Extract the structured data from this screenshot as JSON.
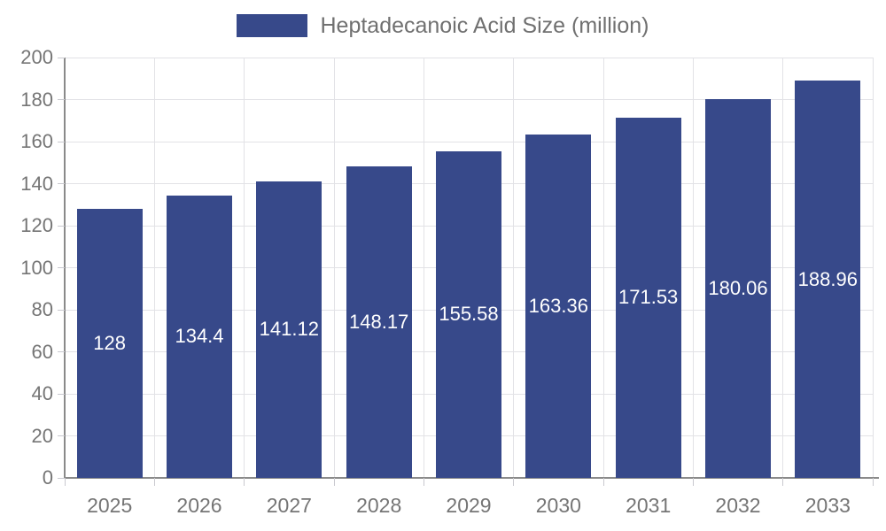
{
  "legend": {
    "label": "Heptadecanoic Acid Size (million)"
  },
  "chart_data": {
    "type": "bar",
    "title": "",
    "categories": [
      "2025",
      "2026",
      "2027",
      "2028",
      "2029",
      "2030",
      "2031",
      "2032",
      "2033"
    ],
    "values": [
      128,
      134.4,
      141.12,
      148.17,
      155.58,
      163.36,
      171.53,
      180.06,
      188.96
    ],
    "value_labels": [
      "128",
      "134.4",
      "141.12",
      "148.17",
      "155.58",
      "163.36",
      "171.53",
      "180.06",
      "188.96"
    ],
    "series_name": "Heptadecanoic Acid Size (million)",
    "xlabel": "",
    "ylabel": "",
    "ylim": [
      0,
      200
    ],
    "ytick_step": 20,
    "grid": true,
    "legend_position": "top",
    "colors": {
      "bar": "#37498a",
      "grid": "#e2e2e6",
      "axis": "#8a8a8a",
      "tick": "#c9c9cf",
      "tick_label": "#757575",
      "value_label": "#ffffff",
      "legend_text": "#707070"
    }
  }
}
